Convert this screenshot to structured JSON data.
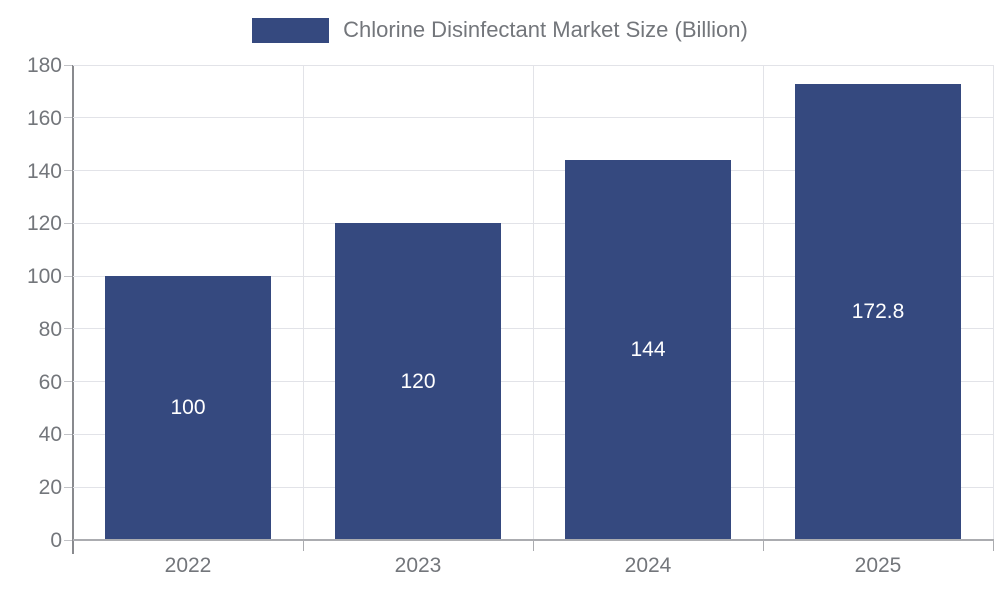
{
  "legend": {
    "label": "Chlorine Disinfectant Market Size (Billion)"
  },
  "chart_data": {
    "type": "bar",
    "title": "Chlorine Disinfectant Market Size (Billion)",
    "categories": [
      "2022",
      "2023",
      "2024",
      "2025"
    ],
    "series": [
      {
        "name": "Chlorine Disinfectant Market Size (Billion)",
        "values": [
          100,
          120,
          144,
          172.8
        ]
      }
    ],
    "data_labels": [
      100,
      120,
      144,
      172.8
    ],
    "xlabel": "",
    "ylabel": "",
    "ylim": [
      0,
      180
    ],
    "ytick_step": 20,
    "yticks": [
      0,
      20,
      40,
      60,
      80,
      100,
      120,
      140,
      160,
      180
    ],
    "grid": true,
    "legend_position": "top-center",
    "bar_label_position": "inside-center"
  },
  "colors": {
    "bar": "#35497F",
    "bar_label": "#FFFFFF",
    "grid_line": "#E2E3E8",
    "y_axis_line": "#898A8E",
    "x_axis_line": "#ABACB0",
    "tick": "#C2C3C7",
    "axis_text": "#73767B",
    "legend_text": "#73767B",
    "background": "#FFFFFF"
  }
}
